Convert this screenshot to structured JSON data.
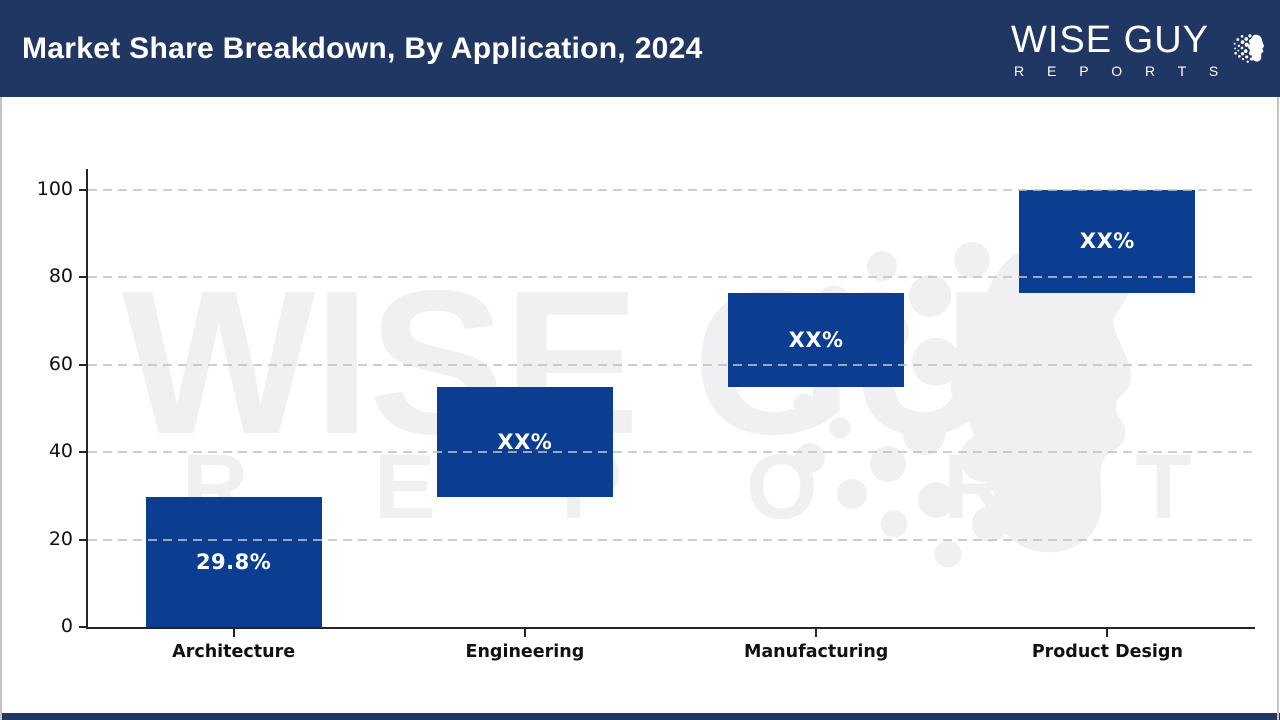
{
  "header": {
    "title": "Market Share Breakdown, By Application, 2024",
    "logo": {
      "line1": "WISE GUY",
      "line2": "R E P O R T S"
    }
  },
  "watermark": {
    "line1": "WISE GUY",
    "line2": "R E P O R T S"
  },
  "chart_data": {
    "type": "bar",
    "subtype": "waterfall-floating-bars",
    "title": "Market Share Breakdown, By Application, 2024",
    "categories": [
      "Architecture",
      "Engineering",
      "Manufacturing",
      "Product Design"
    ],
    "segments": [
      {
        "category": "Architecture",
        "start": 0,
        "end": 29.8,
        "label": "29.8%"
      },
      {
        "category": "Engineering",
        "start": 29.8,
        "end": 55,
        "label": "XX%"
      },
      {
        "category": "Manufacturing",
        "start": 55,
        "end": 76.5,
        "label": "XX%"
      },
      {
        "category": "Product Design",
        "start": 76.5,
        "end": 100,
        "label": "XX%"
      }
    ],
    "yticks": [
      0,
      20,
      40,
      60,
      80,
      100
    ],
    "ylim": [
      0,
      105
    ],
    "xlabel": "",
    "ylabel": "",
    "grid": "horizontal-dashed",
    "legend": "none",
    "colors": {
      "bar": "#0B3D91",
      "bar_label": "#FFFFFF",
      "axis": "#262626",
      "grid": "#C1C1C4",
      "header_bg": "#213763",
      "footer_bg": "#213763",
      "watermark": "#F0F0F2"
    }
  }
}
